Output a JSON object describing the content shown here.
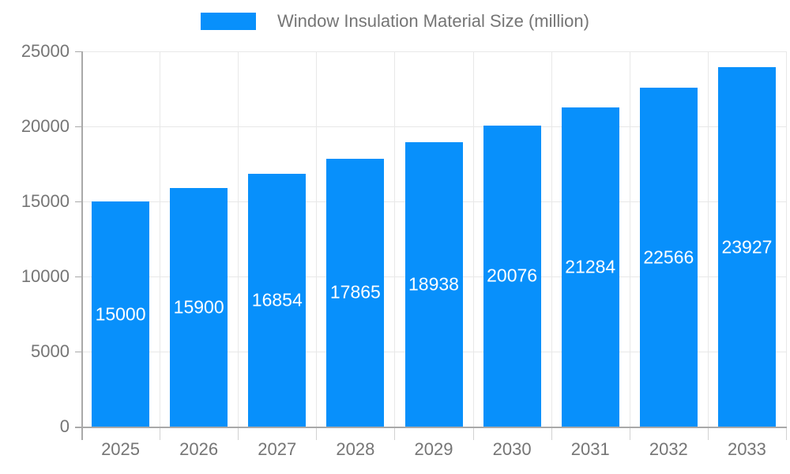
{
  "chart_data": {
    "type": "bar",
    "title": "Window Insulation Material Size (million)",
    "legend_label": "Window Insulation Material Size (million)",
    "legend_position": "top-center",
    "categories": [
      "2025",
      "2026",
      "2027",
      "2028",
      "2029",
      "2030",
      "2031",
      "2032",
      "2033"
    ],
    "values": [
      15000,
      15900,
      16854,
      17865,
      18938,
      20076,
      21284,
      22566,
      23927
    ],
    "xlabel": "",
    "ylabel": "",
    "ylim": [
      0,
      25000
    ],
    "y_ticks": [
      0,
      5000,
      10000,
      15000,
      20000,
      25000
    ],
    "grid": true,
    "bar_color": "#0890fb",
    "value_label_color": "#ffffff"
  },
  "colors": {
    "background": "#ffffff",
    "axis": "#a9a9a9",
    "grid": "#e8e8e8",
    "x_tick": "#d2d2d2",
    "text": "#757575"
  }
}
